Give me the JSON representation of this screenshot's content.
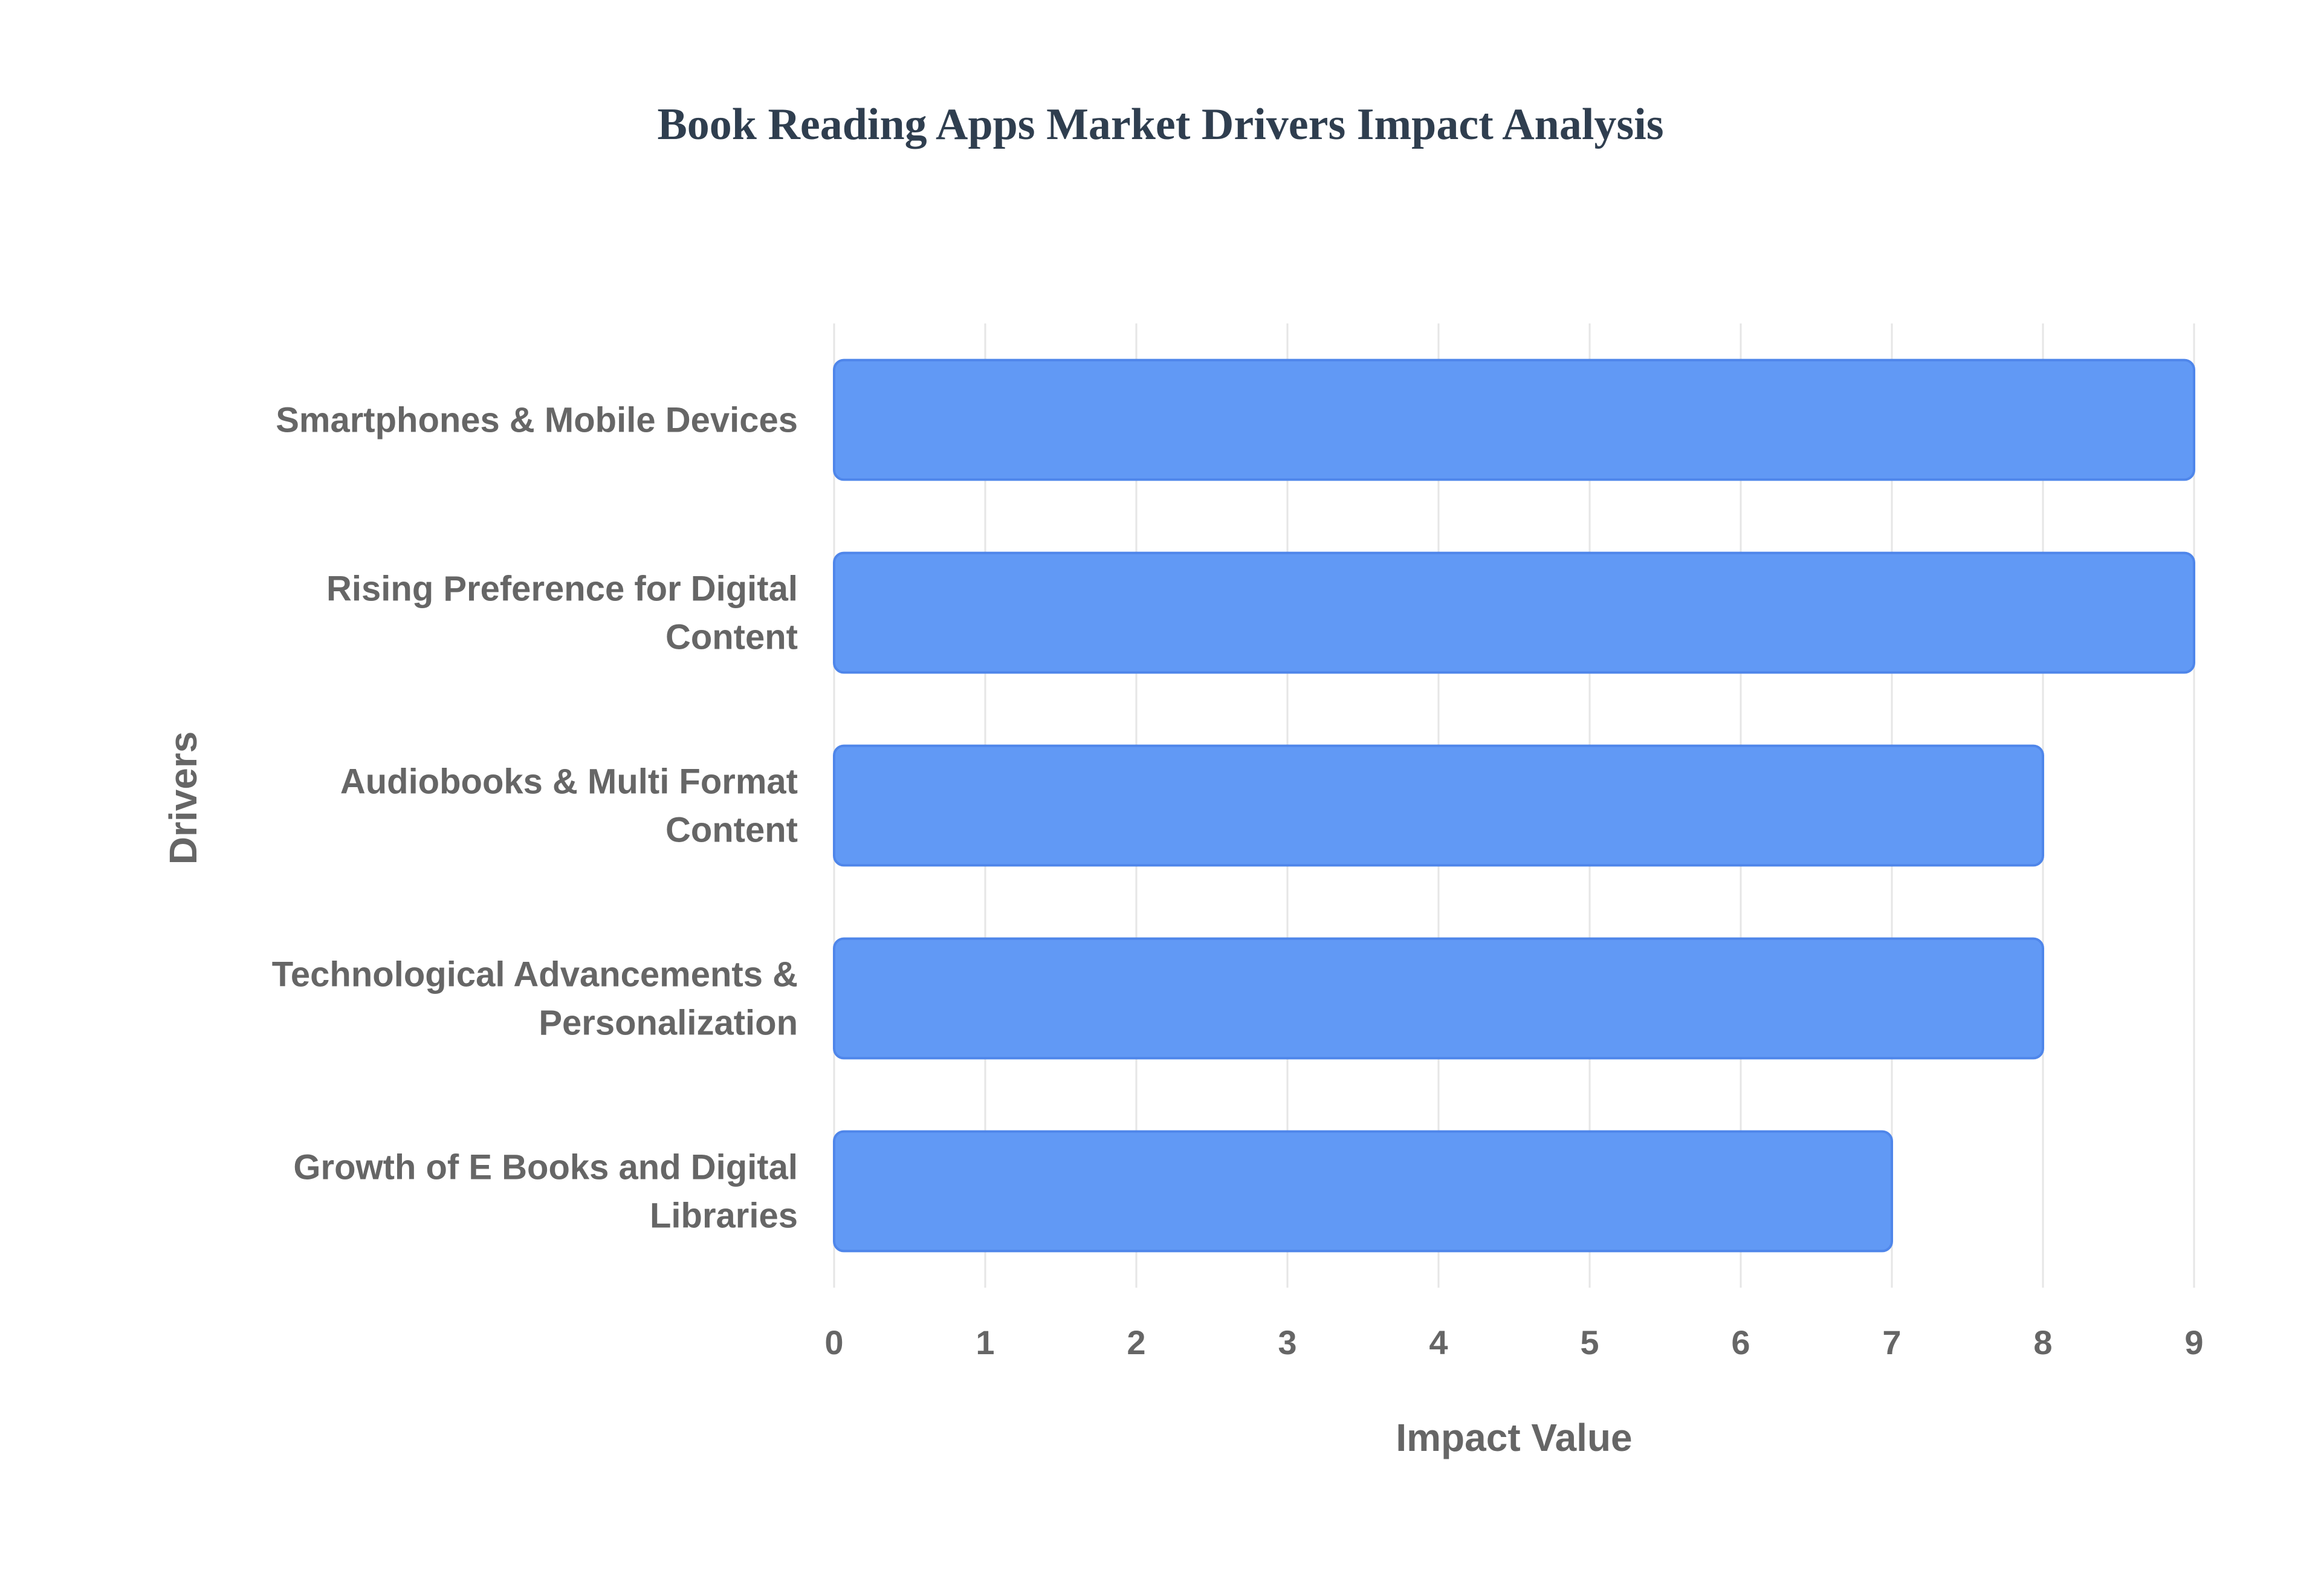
{
  "chart_data": {
    "type": "bar",
    "orientation": "horizontal",
    "title": "Book Reading Apps Market Drivers Impact Analysis",
    "xlabel": "Impact Value",
    "ylabel": "Drivers",
    "categories": [
      "Smartphones & Mobile Devices",
      "Rising Preference for Digital Content",
      "Audiobooks & Multi Format Content",
      "Technological Advancements & Personalization",
      "Growth of E Books and Digital Libraries"
    ],
    "category_lines": [
      [
        "Smartphones & Mobile Devices"
      ],
      [
        "Rising Preference for Digital",
        "Content"
      ],
      [
        "Audiobooks & Multi Format",
        "Content"
      ],
      [
        "Technological Advancements &",
        "Personalization"
      ],
      [
        "Growth of E Books and Digital",
        "Libraries"
      ]
    ],
    "values": [
      9,
      9,
      8,
      8,
      7
    ],
    "xlim": [
      0,
      9
    ],
    "xticks": [
      "0",
      "1",
      "2",
      "3",
      "4",
      "5",
      "6",
      "7",
      "8",
      "9"
    ],
    "grid": true,
    "legend": "none",
    "colors": {
      "bar_fill": "#6199f5",
      "bar_stroke": "#4f86ea",
      "grid": "#e6e6e6",
      "text": "#666666",
      "title": "#2f3e4f"
    }
  }
}
